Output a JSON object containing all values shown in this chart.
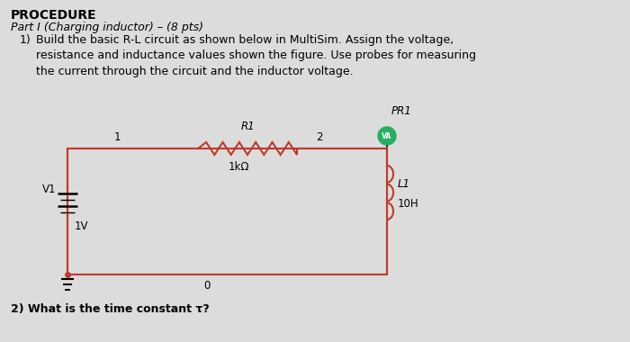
{
  "background_color": "#dcdcdc",
  "title_bold": "PROCEDURE",
  "subtitle": "Part I (Charging inductor) – (8 pts)",
  "instruction_num": "1)",
  "instruction_text": "Build the basic R-L circuit as shown below in MultiSim. Assign the voltage,\nresistance and inductance values shown the figure. Use probes for measuring\nthe current through the circuit and the inductor voltage.",
  "question2": "2) What is the time constant τ?",
  "circuit_color": "#c0392b",
  "probe_color": "#27ae60",
  "text_color": "#000000",
  "title_fontsize": 10,
  "body_fontsize": 9,
  "circuit_lw": 1.5,
  "fig_width": 7.0,
  "fig_height": 3.8
}
